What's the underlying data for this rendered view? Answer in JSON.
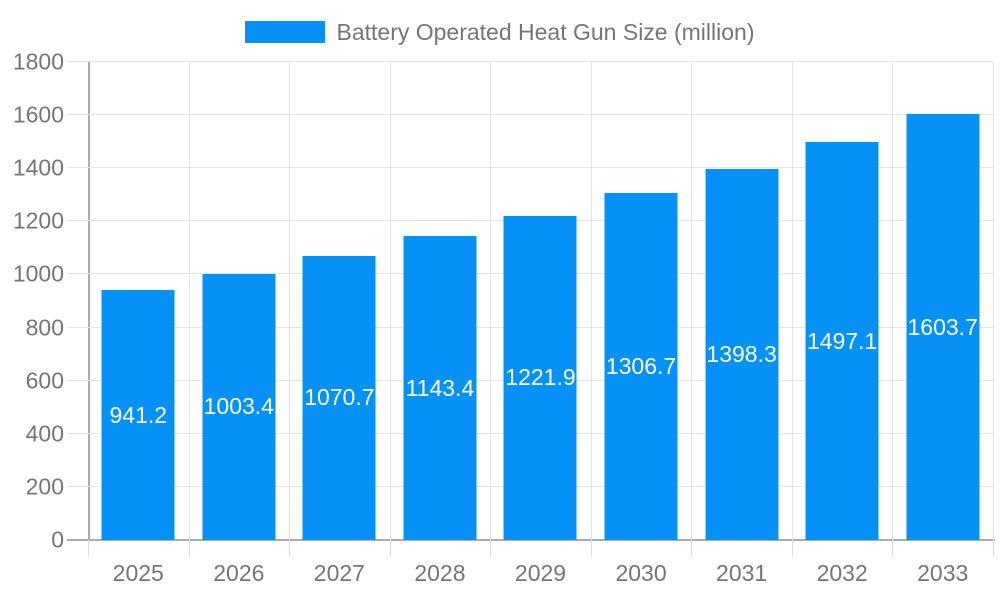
{
  "legend": {
    "swatch_color": "#0591f5",
    "label": "Battery Operated Heat Gun Size (million)"
  },
  "chart_data": {
    "type": "bar",
    "title": "Battery Operated Heat Gun Size (million)",
    "categories": [
      "2025",
      "2026",
      "2027",
      "2028",
      "2029",
      "2030",
      "2031",
      "2032",
      "2033"
    ],
    "series": [
      {
        "name": "Battery Operated Heat Gun Size (million)",
        "values": [
          941.2,
          1003.4,
          1070.7,
          1143.4,
          1221.9,
          1306.7,
          1398.3,
          1497.1,
          1603.7
        ]
      }
    ],
    "bar_value_labels": [
      "941.2",
      "1003.4",
      "1070.7",
      "1143.4",
      "1221.9",
      "1306.7",
      "1398.3",
      "1497.1",
      "1603.7"
    ],
    "xlabel": "",
    "ylabel": "",
    "ylim": [
      0,
      1800
    ],
    "yticks": [
      0,
      200,
      400,
      600,
      800,
      1000,
      1200,
      1400,
      1600,
      1800
    ],
    "grid": true,
    "legend_position": "top",
    "colors": {
      "bar": "#0591f5",
      "grid": "#e4e4e4",
      "tick": "#dcdcdc",
      "axis_line": "#ababab",
      "axis_text": "#757575",
      "bar_label_text": "#ffffff"
    }
  }
}
